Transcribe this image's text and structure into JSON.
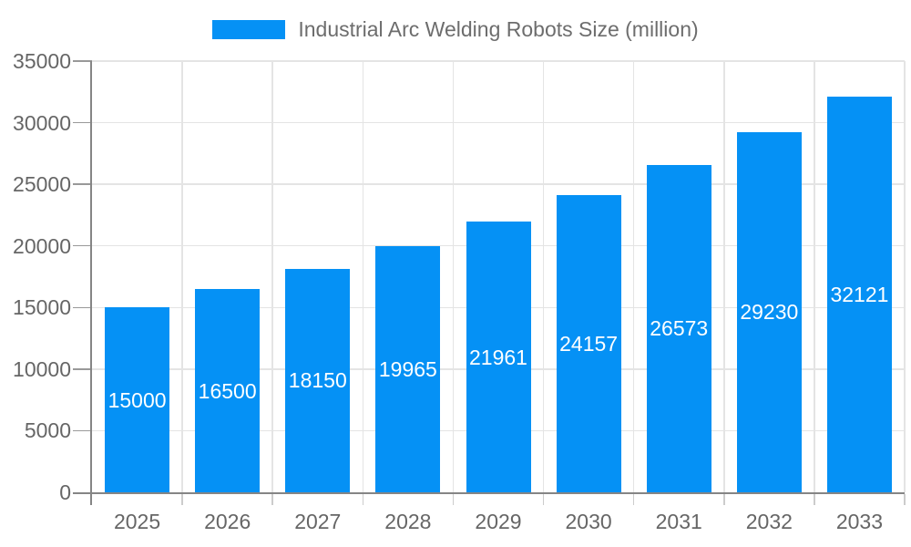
{
  "chart_data": {
    "type": "bar",
    "title": "Industrial Arc Welding Robots Size (million)",
    "legend": {
      "label": "Industrial Arc Welding Robots Size (million)",
      "position": "top-center"
    },
    "categories": [
      "2025",
      "2026",
      "2027",
      "2028",
      "2029",
      "2030",
      "2031",
      "2032",
      "2033"
    ],
    "series": [
      {
        "name": "Industrial Arc Welding Robots Size (million)",
        "values": [
          15000,
          16500,
          18150,
          19965,
          21961,
          24157,
          26573,
          29230,
          32121
        ]
      }
    ],
    "xlabel": "",
    "ylabel": "",
    "ylim": [
      0,
      35000
    ],
    "yticks": [
      0,
      5000,
      10000,
      15000,
      20000,
      25000,
      30000,
      35000
    ],
    "grid": true,
    "value_label_position": "inside-center",
    "colors": {
      "bar": "#0591f5",
      "axis": "#858585",
      "grid": "#e4e4e4",
      "y_tick": "#999999",
      "x_tick": "#cccccc",
      "axis_label": "#666666",
      "legend_text": "#6d6d6d",
      "value_label": "#ffffff",
      "background": "#ffffff"
    }
  }
}
